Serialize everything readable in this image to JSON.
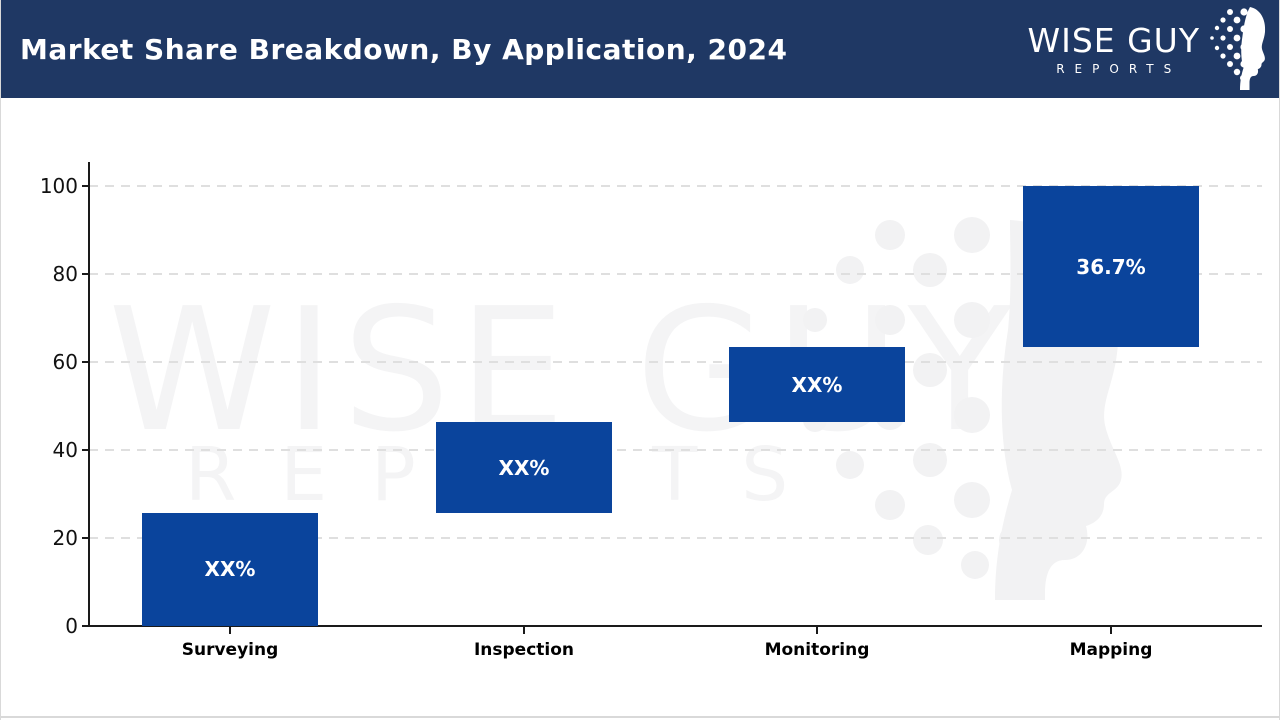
{
  "header": {
    "title": "Market Share Breakdown, By Application, 2024",
    "bg_color": "#1f3864",
    "logo": {
      "line1": "WISE GUY",
      "line2": "REPORTS"
    }
  },
  "watermark": {
    "line1": "WISE GUY",
    "line2": "REPORTS"
  },
  "chart_data": {
    "type": "bar",
    "subtype": "waterfall",
    "title": "Market Share Breakdown, By Application, 2024",
    "categories": [
      "Surveying",
      "Inspection",
      "Monitoring",
      "Mapping"
    ],
    "segments": [
      {
        "category": "Surveying",
        "start": 0,
        "end": 25.7,
        "label": "XX%"
      },
      {
        "category": "Inspection",
        "start": 25.7,
        "end": 46.3,
        "label": "XX%"
      },
      {
        "category": "Monitoring",
        "start": 46.3,
        "end": 63.3,
        "label": "XX%"
      },
      {
        "category": "Mapping",
        "start": 63.3,
        "end": 100,
        "label": "36.7%"
      }
    ],
    "xlabel": "",
    "ylabel": "",
    "ylim": [
      0,
      100
    ],
    "yticks": [
      0,
      20,
      40,
      60,
      80,
      100
    ],
    "grid": "horizontal-dashed",
    "legend": "none",
    "bar_color": "#0a449c",
    "bar_label_color": "#ffffff",
    "gridline_color": "#dfdfdf",
    "axis_color": "#1a1a1a"
  }
}
